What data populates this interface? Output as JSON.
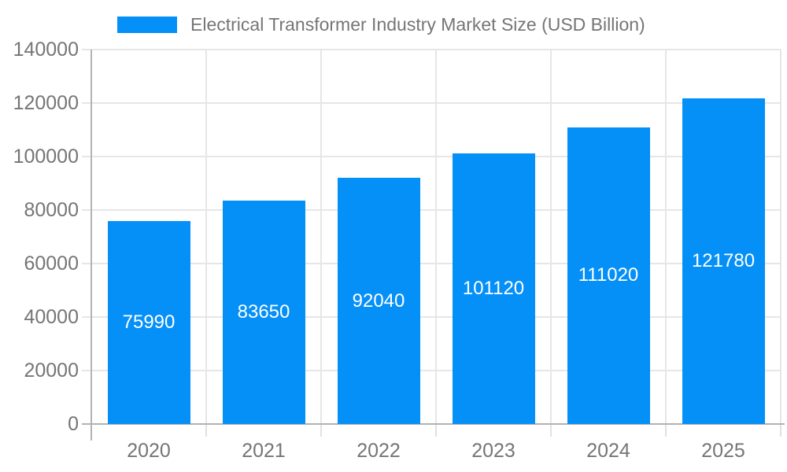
{
  "legend": {
    "series_label": "Electrical Transformer Industry Market Size (USD Billion)"
  },
  "colors": {
    "bar": "#0590F8",
    "title_text": "#757575",
    "axis_text": "#757575",
    "grid": "#e6e6e6",
    "axis_line": "#b3b3b3",
    "tick": "#e0e0e0",
    "value_label": "#ffffff",
    "background": "#ffffff"
  },
  "chart_data": {
    "type": "bar",
    "title": "Electrical Transformer Industry Market Size (USD Billion)",
    "categories": [
      "2020",
      "2021",
      "2022",
      "2023",
      "2024",
      "2025"
    ],
    "values": [
      75990,
      83650,
      92040,
      101120,
      111020,
      121780
    ],
    "series": [
      {
        "name": "Electrical Transformer Industry Market Size (USD Billion)",
        "values": [
          75990,
          83650,
          92040,
          101120,
          111020,
          121780
        ]
      }
    ],
    "xlabel": "",
    "ylabel": "",
    "ylim": [
      0,
      140000
    ],
    "yticks": [
      0,
      20000,
      40000,
      60000,
      80000,
      100000,
      120000,
      140000
    ],
    "grid": true,
    "legend_position": "top",
    "value_label_position": "inside-center"
  }
}
